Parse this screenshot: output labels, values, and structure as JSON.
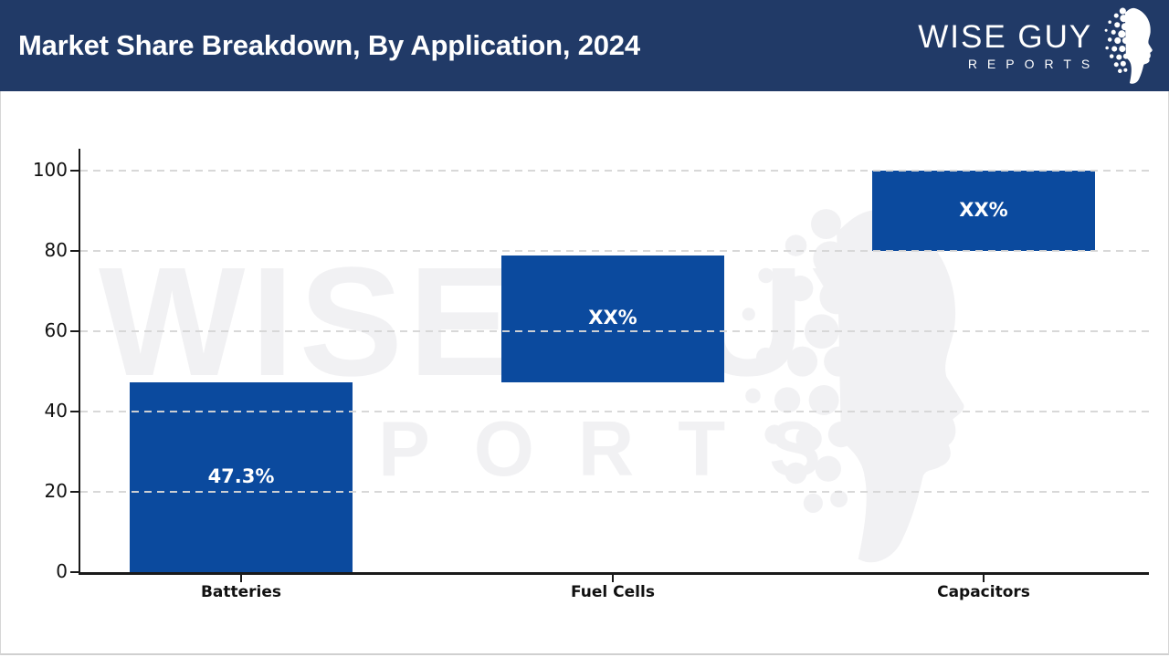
{
  "header": {
    "title": "Market Share Breakdown, By Application, 2024",
    "bg_color": "#213A67",
    "logo": {
      "wordmark": "WISE GUY",
      "subtitle": "REPORTS"
    }
  },
  "watermark": {
    "line1": "WISE GUY",
    "line2": "REPORTS"
  },
  "chart_data": {
    "type": "bar",
    "subtype": "floating-waterfall",
    "title": "Market Share Breakdown, By Application, 2024",
    "categories": [
      "Batteries",
      "Fuel Cells",
      "Capacitors"
    ],
    "segments": [
      {
        "category": "Batteries",
        "label": "47.3%",
        "start": 0,
        "end": 47.3
      },
      {
        "category": "Fuel Cells",
        "label": "XX%",
        "start": 47.3,
        "end": 78.9
      },
      {
        "category": "Capacitors",
        "label": "XX%",
        "start": 79.9,
        "end": 100
      }
    ],
    "yticks": [
      0,
      20,
      40,
      60,
      80,
      100
    ],
    "ylim": [
      0,
      105.5
    ],
    "xlabel": "",
    "ylabel": "",
    "grid": {
      "axis": "y",
      "style": "dashed",
      "color": "#D8D8D8",
      "drawn_over_bars": true
    },
    "legend": null,
    "bar_color": "#0B4A9E",
    "bar_label_color": "#FFFFFF",
    "axis_color": "#1A1A1A"
  }
}
